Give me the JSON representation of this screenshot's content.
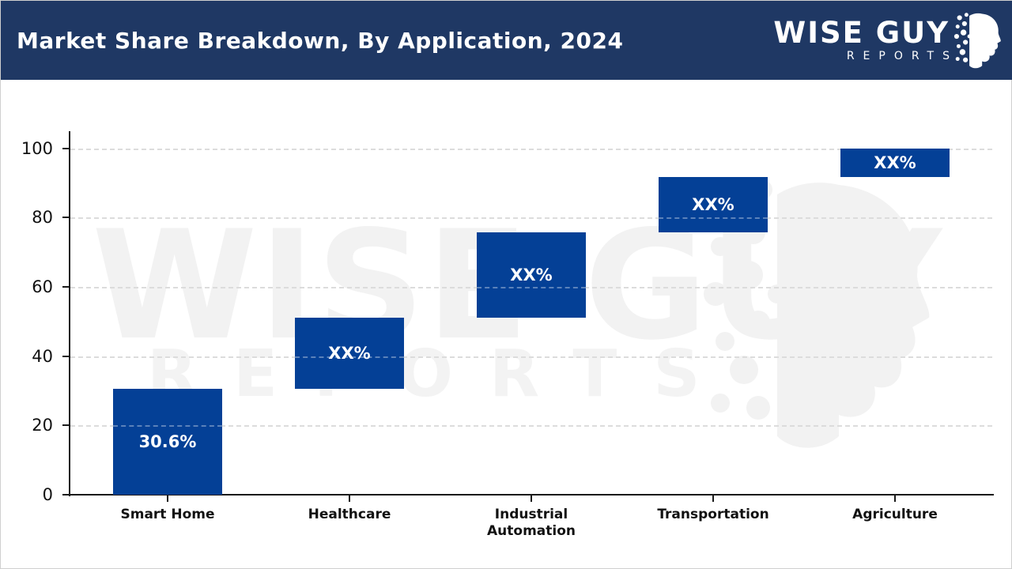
{
  "header": {
    "title": "Market Share Breakdown, By Application, 2024",
    "logo": {
      "line1": "WISE GUY",
      "line2": "REPORTS"
    }
  },
  "watermark": {
    "line1": "WISE GUY",
    "line2": "REPORTS"
  },
  "colors": {
    "header_bg": "#1f3864",
    "bar": "#044096",
    "gridline": "#dcdcdc",
    "axis": "#1a1a1a",
    "bar_label_text": "#ffffff",
    "watermark": "#f2f2f2"
  },
  "chart_data": {
    "type": "bar",
    "subtype": "waterfall",
    "title": "Market Share Breakdown, By Application, 2024",
    "categories": [
      "Smart Home",
      "Healthcare",
      "Industrial Automation",
      "Transportation",
      "Agriculture"
    ],
    "segments": [
      {
        "label": "Smart Home",
        "start": 0,
        "value": 30.6,
        "bar_label": "30.6%"
      },
      {
        "label": "Healthcare",
        "start": 30.6,
        "value": 20.5,
        "bar_label": "XX%"
      },
      {
        "label": "Industrial Automation",
        "start": 51.1,
        "value": 24.6,
        "bar_label": "XX%"
      },
      {
        "label": "Transportation",
        "start": 75.7,
        "value": 16.1,
        "bar_label": "XX%"
      },
      {
        "label": "Agriculture",
        "start": 91.8,
        "value": 8.2,
        "bar_label": "XX%"
      }
    ],
    "ylim": [
      0,
      100
    ],
    "yticks": [
      0,
      20,
      40,
      60,
      80,
      100
    ],
    "xlabel": "",
    "ylabel": "",
    "grid": "horizontal-dashed",
    "legend": "none"
  }
}
